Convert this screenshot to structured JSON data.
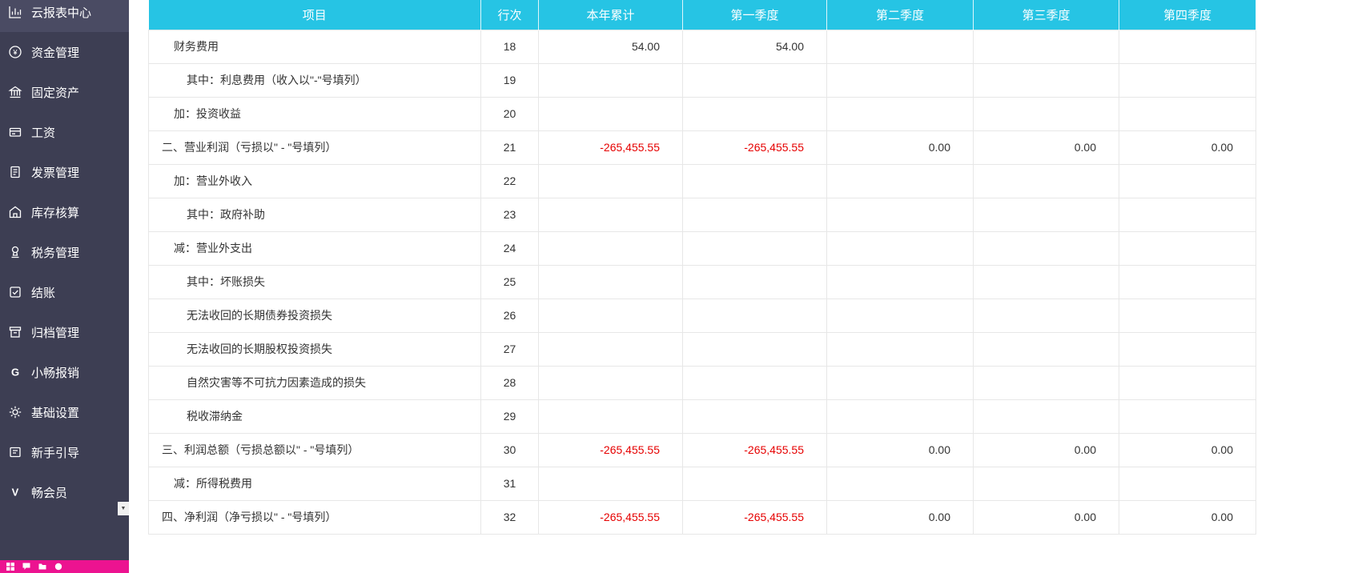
{
  "colors": {
    "sidebar_bg": "#3d3e53",
    "header_bg": "#26c4e4",
    "negative": "#e60000",
    "taskbar_bg": "#ec1390"
  },
  "sidebar": {
    "scroll_down_glyph": "▼",
    "items": [
      {
        "label": "云报表中心",
        "icon": "chart-icon"
      },
      {
        "label": "资金管理",
        "icon": "money-icon"
      },
      {
        "label": "固定资产",
        "icon": "building-icon"
      },
      {
        "label": "工资",
        "icon": "salary-icon"
      },
      {
        "label": "发票管理",
        "icon": "invoice-icon"
      },
      {
        "label": "库存核算",
        "icon": "inventory-icon"
      },
      {
        "label": "税务管理",
        "icon": "tax-icon"
      },
      {
        "label": "结账",
        "icon": "closing-icon"
      },
      {
        "label": "归档管理",
        "icon": "archive-icon"
      },
      {
        "label": "小畅报销",
        "icon": "reimburse-icon"
      },
      {
        "label": "基础设置",
        "icon": "settings-icon"
      },
      {
        "label": "新手引导",
        "icon": "guide-icon"
      },
      {
        "label": "畅会员",
        "icon": "member-icon"
      }
    ]
  },
  "table": {
    "headers": [
      "项目",
      "行次",
      "本年累计",
      "第一季度",
      "第二季度",
      "第三季度",
      "第四季度"
    ],
    "rows": [
      {
        "item": "财务费用",
        "indent": 1,
        "line": "18",
        "values": [
          "54.00",
          "54.00",
          "",
          "",
          ""
        ]
      },
      {
        "item": "其中：利息费用（收入以\"-\"号填列）",
        "indent": 2,
        "line": "19",
        "values": [
          "",
          "",
          "",
          "",
          ""
        ]
      },
      {
        "item": "加：投资收益",
        "indent": 1,
        "line": "20",
        "values": [
          "",
          "",
          "",
          "",
          ""
        ]
      },
      {
        "item": "二、营业利润（亏损以\" - \"号填列）",
        "indent": 0,
        "line": "21",
        "values": [
          "-265,455.55",
          "-265,455.55",
          "0.00",
          "0.00",
          "0.00"
        ]
      },
      {
        "item": "加：营业外收入",
        "indent": 1,
        "line": "22",
        "values": [
          "",
          "",
          "",
          "",
          ""
        ]
      },
      {
        "item": "其中：政府补助",
        "indent": 2,
        "line": "23",
        "values": [
          "",
          "",
          "",
          "",
          ""
        ]
      },
      {
        "item": "减：营业外支出",
        "indent": 1,
        "line": "24",
        "values": [
          "",
          "",
          "",
          "",
          ""
        ]
      },
      {
        "item": "其中：坏账损失",
        "indent": 2,
        "line": "25",
        "values": [
          "",
          "",
          "",
          "",
          ""
        ]
      },
      {
        "item": "无法收回的长期债券投资损失",
        "indent": 2,
        "line": "26",
        "values": [
          "",
          "",
          "",
          "",
          ""
        ]
      },
      {
        "item": "无法收回的长期股权投资损失",
        "indent": 2,
        "line": "27",
        "values": [
          "",
          "",
          "",
          "",
          ""
        ]
      },
      {
        "item": "自然灾害等不可抗力因素造成的损失",
        "indent": 2,
        "line": "28",
        "values": [
          "",
          "",
          "",
          "",
          ""
        ]
      },
      {
        "item": "税收滞纳金",
        "indent": 2,
        "line": "29",
        "values": [
          "",
          "",
          "",
          "",
          ""
        ]
      },
      {
        "item": "三、利润总额（亏损总额以\" - \"号填列）",
        "indent": 0,
        "line": "30",
        "values": [
          "-265,455.55",
          "-265,455.55",
          "0.00",
          "0.00",
          "0.00"
        ]
      },
      {
        "item": "减：所得税费用",
        "indent": 1,
        "line": "31",
        "values": [
          "",
          "",
          "",
          "",
          ""
        ]
      },
      {
        "item": "四、净利润（净亏损以\" - \"号填列）",
        "indent": 0,
        "line": "32",
        "values": [
          "-265,455.55",
          "-265,455.55",
          "0.00",
          "0.00",
          "0.00"
        ]
      }
    ]
  }
}
